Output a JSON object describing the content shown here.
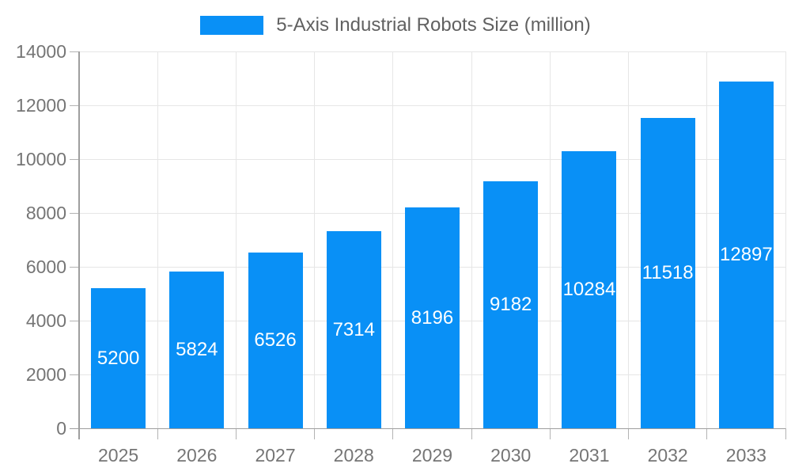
{
  "chart_data": {
    "type": "bar",
    "title": "5-Axis Industrial Robots Size (million)",
    "categories": [
      "2025",
      "2026",
      "2027",
      "2028",
      "2029",
      "2030",
      "2031",
      "2032",
      "2033"
    ],
    "values": [
      5200,
      5824,
      6526,
      7314,
      8196,
      9182,
      10284,
      11518,
      12897
    ],
    "xlabel": "",
    "ylabel": "",
    "ylim": [
      0,
      14000
    ],
    "ytick_step": 2000,
    "ytick_labels": [
      "0",
      "2000",
      "4000",
      "6000",
      "8000",
      "10000",
      "12000",
      "14000"
    ],
    "grid": "on",
    "legend_position": "top-center",
    "value_labels": "inside-center-white",
    "colors": {
      "bar": "#0990f6",
      "bar_label": "#ffffff",
      "axis_text": "#757575",
      "legend_text": "#616161",
      "gridline": "#e6e6e6",
      "axis_line": "#9e9e9e",
      "tick": "#b3b3b3",
      "background": "#ffffff"
    }
  }
}
